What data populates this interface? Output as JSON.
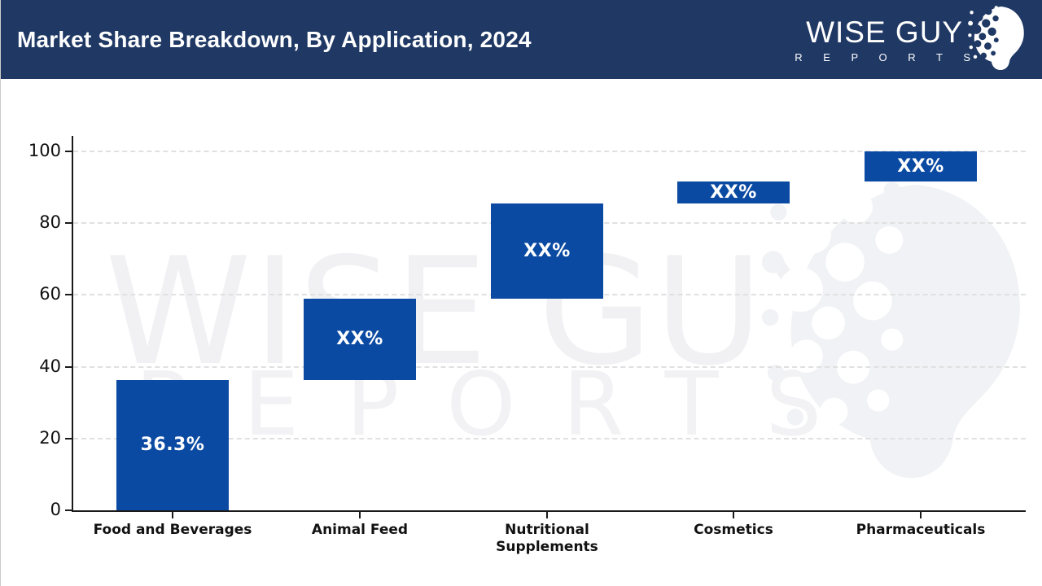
{
  "header": {
    "title": "Market Share Breakdown, By Application, 2024",
    "logo_line1": "WISE GUY",
    "logo_line2": "REPORTS"
  },
  "watermark": {
    "line1": "WISE GUY",
    "line2": "REPORTS"
  },
  "colors": {
    "header_bg": "#1f3864",
    "bar": "#0b4aa2",
    "bar_label": "#ffffff",
    "gridline": "#e0e0e0",
    "watermark": "#f1f1f4"
  },
  "chart_data": {
    "type": "bar",
    "subtype": "waterfall",
    "title": "Market Share Breakdown, By Application, 2024",
    "categories": [
      "Food and Beverages",
      "Animal Feed",
      "Nutritional\nSupplements",
      "Cosmetics",
      "Pharmaceuticals"
    ],
    "bars": [
      {
        "category": "Food and Beverages",
        "start": 0,
        "end": 36.3,
        "label": "36.3%"
      },
      {
        "category": "Animal Feed",
        "start": 36.3,
        "end": 59.0,
        "label": "XX%"
      },
      {
        "category": "Nutritional Supplements",
        "start": 59.0,
        "end": 85.5,
        "label": "XX%"
      },
      {
        "category": "Cosmetics",
        "start": 85.5,
        "end": 91.6,
        "label": "XX%"
      },
      {
        "category": "Pharmaceuticals",
        "start": 91.6,
        "end": 100,
        "label": "XX%"
      }
    ],
    "yticks": [
      0,
      20,
      40,
      60,
      80,
      100
    ],
    "ylim": [
      0,
      105
    ],
    "xlabel": "",
    "ylabel": "",
    "grid": "horizontal-dashed",
    "legend": "none"
  }
}
